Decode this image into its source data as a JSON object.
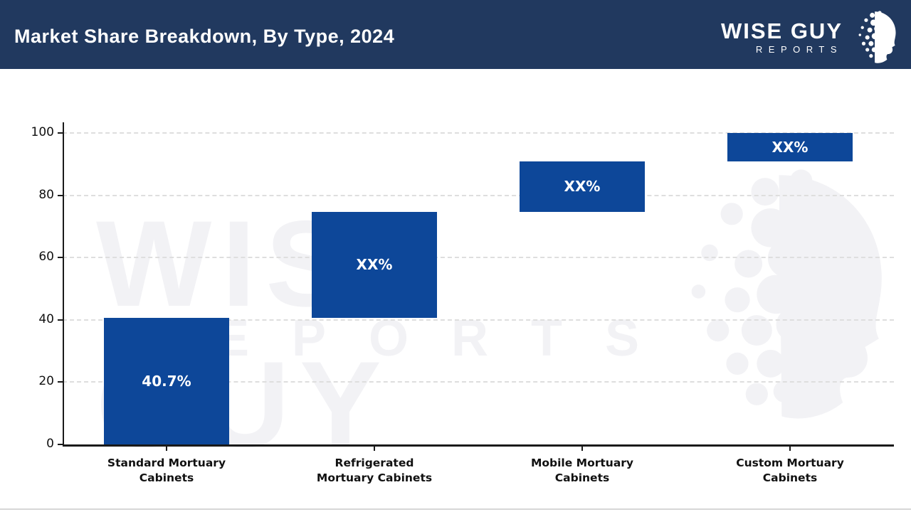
{
  "header": {
    "title": "Market Share Breakdown, By Type, 2024",
    "logo": {
      "line1": "WISE GUY",
      "line2": "REPORTS"
    }
  },
  "watermark": {
    "line1": "WISE GUY",
    "line2": "REPORTS"
  },
  "chart_data": {
    "type": "bar",
    "variant": "waterfall",
    "title": "Market Share Breakdown, By Type, 2024",
    "categories": [
      "Standard Mortuary Cabinets",
      "Refrigerated Mortuary Cabinets",
      "Mobile Mortuary Cabinets",
      "Custom Mortuary Cabinets"
    ],
    "category_lines": [
      [
        "Standard Mortuary",
        "Cabinets"
      ],
      [
        "Refrigerated",
        "Mortuary Cabinets"
      ],
      [
        "Mobile Mortuary",
        "Cabinets"
      ],
      [
        "Custom Mortuary",
        "Cabinets"
      ]
    ],
    "segments": [
      {
        "category": "Standard Mortuary Cabinets",
        "start": 0,
        "end": 40.7,
        "label": "40.7%"
      },
      {
        "category": "Refrigerated Mortuary Cabinets",
        "start": 40.7,
        "end": 74.7,
        "label": "XX%"
      },
      {
        "category": "Mobile Mortuary Cabinets",
        "start": 74.7,
        "end": 90.9,
        "label": "XX%"
      },
      {
        "category": "Custom Mortuary Cabinets",
        "start": 90.9,
        "end": 100,
        "label": "XX%"
      }
    ],
    "xlabel": "",
    "ylabel": "",
    "yticks": [
      0,
      20,
      40,
      60,
      80,
      100
    ],
    "ylim": [
      0,
      100
    ],
    "grid": "horizontal-dashed",
    "legend": "none",
    "bar_color": "#0D4799",
    "bar_label_color": "#ffffff",
    "axis_color": "#1a1a1a",
    "gridline_color": "#dedede"
  },
  "colors": {
    "header_bg": "#21395F",
    "header_text": "#ffffff",
    "watermark": "#f2f2f5",
    "footer_line": "#d7d7d7"
  }
}
